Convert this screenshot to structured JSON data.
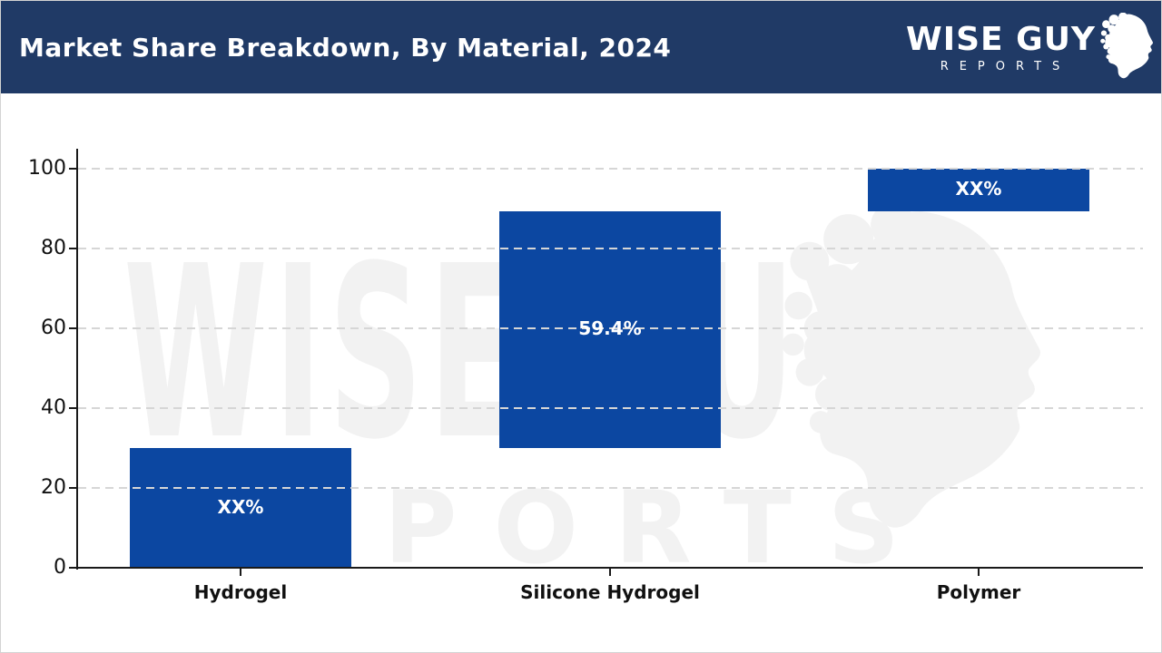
{
  "header": {
    "title": "Market Share Breakdown, By Material, 2024",
    "logo": {
      "name_top": "WISE GUY",
      "name_bottom": "REPORTS"
    }
  },
  "watermark": {
    "big_text": "WISE GUY",
    "small_text": "REPORTS"
  },
  "colors": {
    "header_bg": "#203a66",
    "title_text": "#ffffff",
    "bar": "#0c47a1",
    "bar_label_text": "#ffffff",
    "gridline": "#d6d6d6",
    "axis": "#1a1a1a",
    "watermark": "#f2f2f2"
  },
  "chart_data": {
    "type": "bar",
    "subtype": "floating-waterfall",
    "title": "Market Share Breakdown, By Material, 2024",
    "categories": [
      "Hydrogel",
      "Silicone Hydrogel",
      "Polymer"
    ],
    "series": [
      {
        "name": "Market share (%)",
        "segments": [
          {
            "category": "Hydrogel",
            "start": 0,
            "end": 30,
            "label": "XX%"
          },
          {
            "category": "Silicone Hydrogel",
            "start": 30,
            "end": 89.4,
            "label": "59.4%"
          },
          {
            "category": "Polymer",
            "start": 89.4,
            "end": 100,
            "label": "XX%"
          }
        ]
      }
    ],
    "xlabel": "",
    "ylabel": "",
    "yticks": [
      0,
      20,
      40,
      60,
      80,
      100
    ],
    "ylim": [
      0,
      105
    ],
    "grid": "horizontal-dashed",
    "legend": "none",
    "bar_color": "#0c47a1"
  }
}
